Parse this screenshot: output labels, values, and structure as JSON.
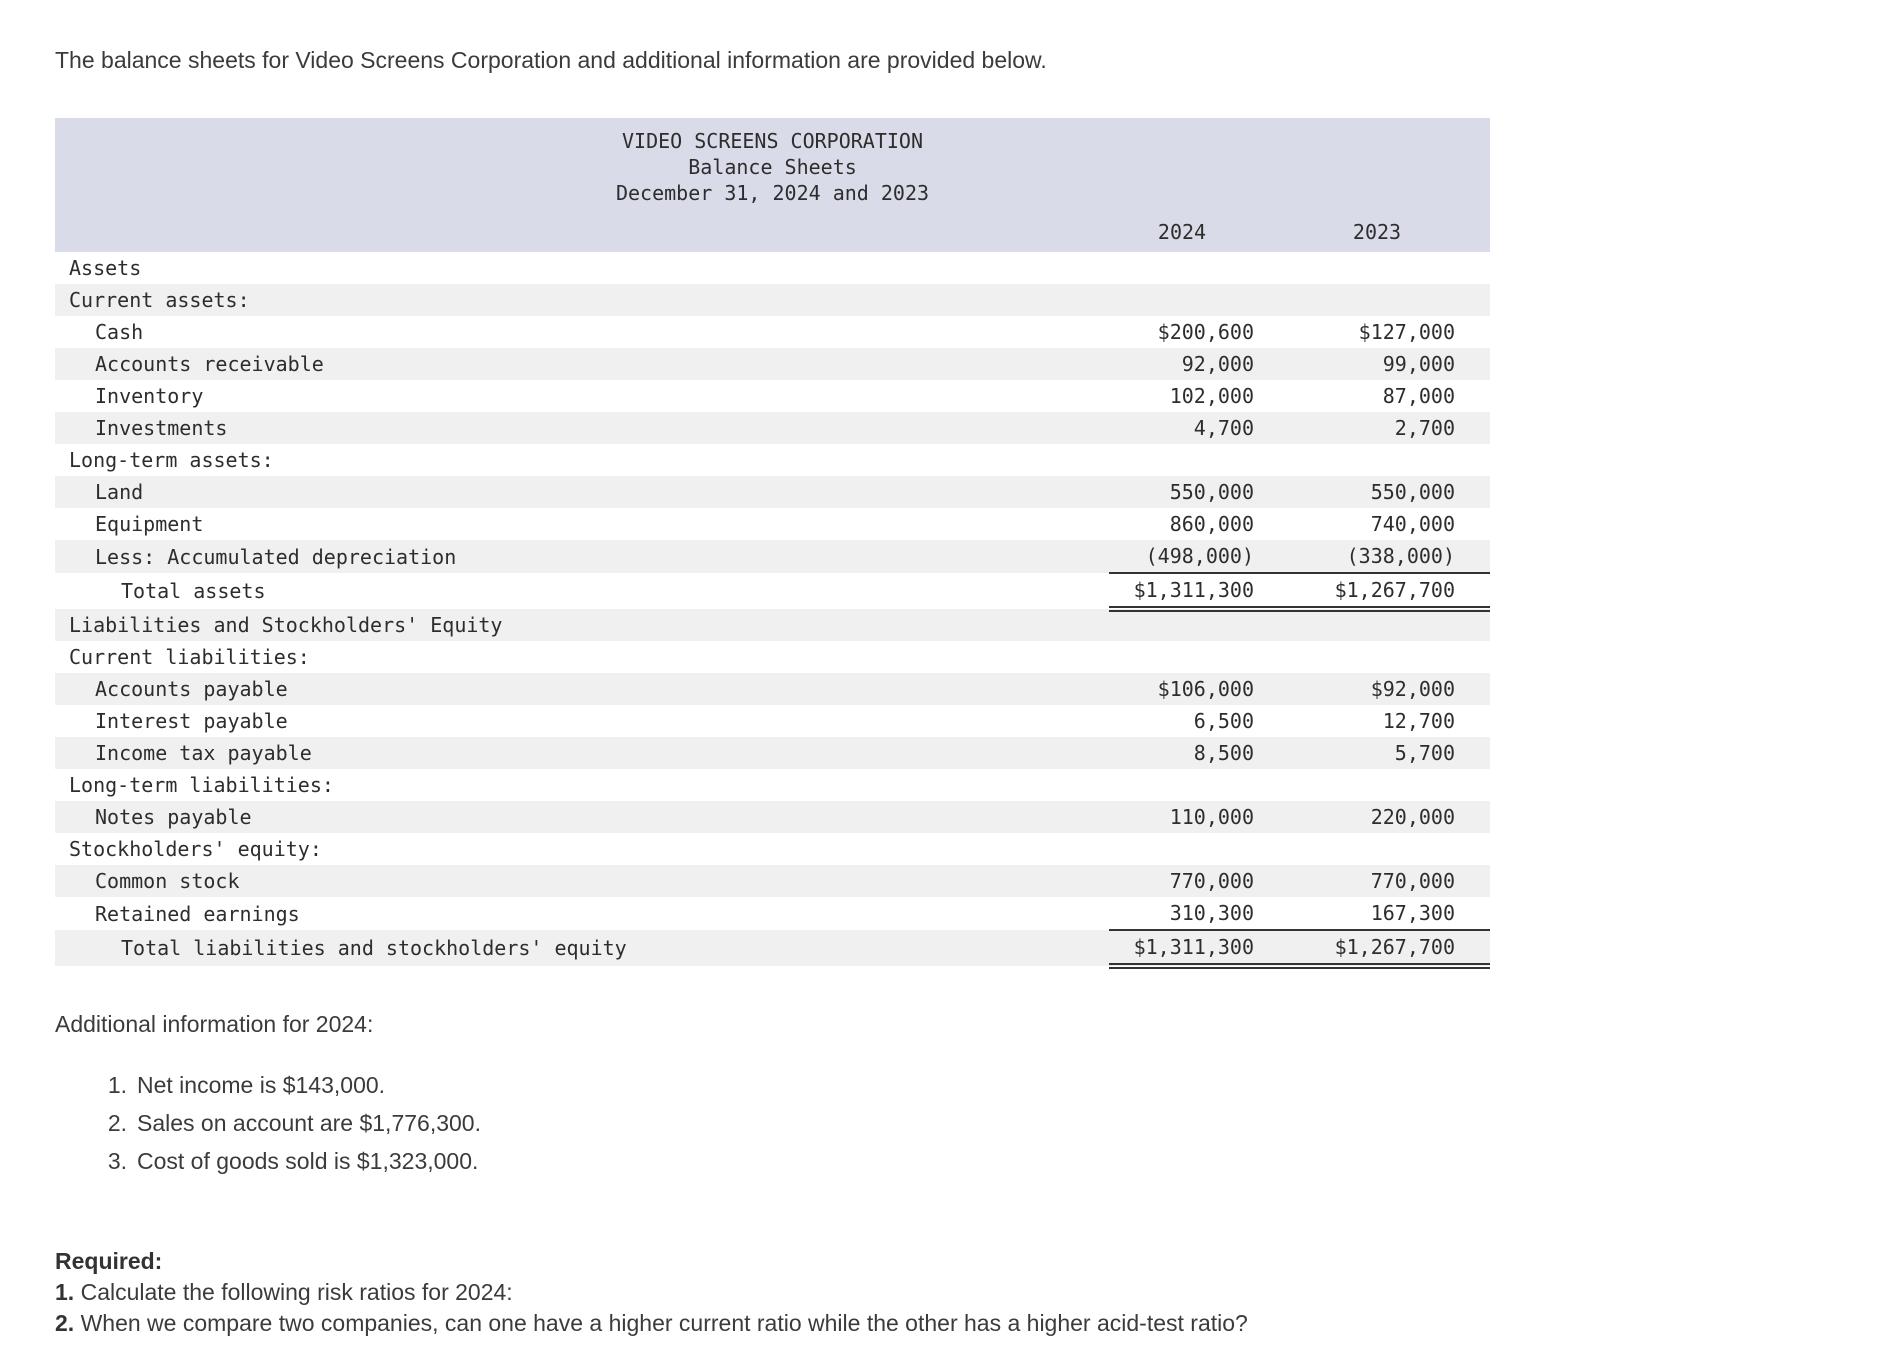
{
  "intro": "The balance sheets for Video Screens Corporation and additional information are provided below.",
  "table": {
    "title_lines": [
      "VIDEO SCREENS CORPORATION",
      "Balance Sheets",
      "December 31, 2024 and 2023"
    ],
    "col_headers": [
      "2024",
      "2023"
    ],
    "header_bg": "#d9dce8",
    "stripe_bg": "#f0f0f0",
    "rows": [
      {
        "label": "Assets",
        "indent": 0,
        "v2024": "",
        "v2023": ""
      },
      {
        "label": "Current assets:",
        "indent": 0,
        "v2024": "",
        "v2023": ""
      },
      {
        "label": "Cash",
        "indent": 1,
        "v2024": "$200,600",
        "v2023": "$127,000"
      },
      {
        "label": "Accounts receivable",
        "indent": 1,
        "v2024": "92,000",
        "v2023": "99,000"
      },
      {
        "label": "Inventory",
        "indent": 1,
        "v2024": "102,000",
        "v2023": "87,000"
      },
      {
        "label": "Investments",
        "indent": 1,
        "v2024": "4,700",
        "v2023": "2,700"
      },
      {
        "label": "Long-term assets:",
        "indent": 0,
        "v2024": "",
        "v2023": ""
      },
      {
        "label": "Land",
        "indent": 1,
        "v2024": "550,000",
        "v2023": "550,000"
      },
      {
        "label": "Equipment",
        "indent": 1,
        "v2024": "860,000",
        "v2023": "740,000"
      },
      {
        "label": "Less: Accumulated depreciation",
        "indent": 1,
        "v2024": "(498,000)",
        "v2023": "(338,000)",
        "rule": "single"
      },
      {
        "label": "Total assets",
        "indent": 2,
        "v2024": "$1,311,300",
        "v2023": "$1,267,700",
        "rule": "double"
      },
      {
        "label": "Liabilities and Stockholders' Equity",
        "indent": 0,
        "v2024": "",
        "v2023": ""
      },
      {
        "label": "Current liabilities:",
        "indent": 0,
        "v2024": "",
        "v2023": ""
      },
      {
        "label": "Accounts payable",
        "indent": 1,
        "v2024": "$106,000",
        "v2023": "$92,000"
      },
      {
        "label": "Interest payable",
        "indent": 1,
        "v2024": "6,500",
        "v2023": "12,700"
      },
      {
        "label": "Income tax payable",
        "indent": 1,
        "v2024": "8,500",
        "v2023": "5,700"
      },
      {
        "label": "Long-term liabilities:",
        "indent": 0,
        "v2024": "",
        "v2023": ""
      },
      {
        "label": "Notes payable",
        "indent": 1,
        "v2024": "110,000",
        "v2023": "220,000"
      },
      {
        "label": "Stockholders' equity:",
        "indent": 0,
        "v2024": "",
        "v2023": ""
      },
      {
        "label": "Common stock",
        "indent": 1,
        "v2024": "770,000",
        "v2023": "770,000"
      },
      {
        "label": "Retained earnings",
        "indent": 1,
        "v2024": "310,300",
        "v2023": "167,300",
        "rule": "single"
      },
      {
        "label": "Total liabilities and stockholders' equity",
        "indent": 2,
        "v2024": "$1,311,300",
        "v2023": "$1,267,700",
        "rule": "double"
      }
    ]
  },
  "additional_info": {
    "heading": "Additional information for 2024:",
    "items": [
      "Net income is $143,000.",
      "Sales on account are $1,776,300.",
      "Cost of goods sold is $1,323,000."
    ]
  },
  "required": {
    "heading": "Required:",
    "items": [
      {
        "num": "1.",
        "text": "Calculate the following risk ratios for 2024:"
      },
      {
        "num": "2.",
        "text": "When we compare two companies, can one have a higher current ratio while the other has a higher acid-test ratio?"
      }
    ]
  }
}
